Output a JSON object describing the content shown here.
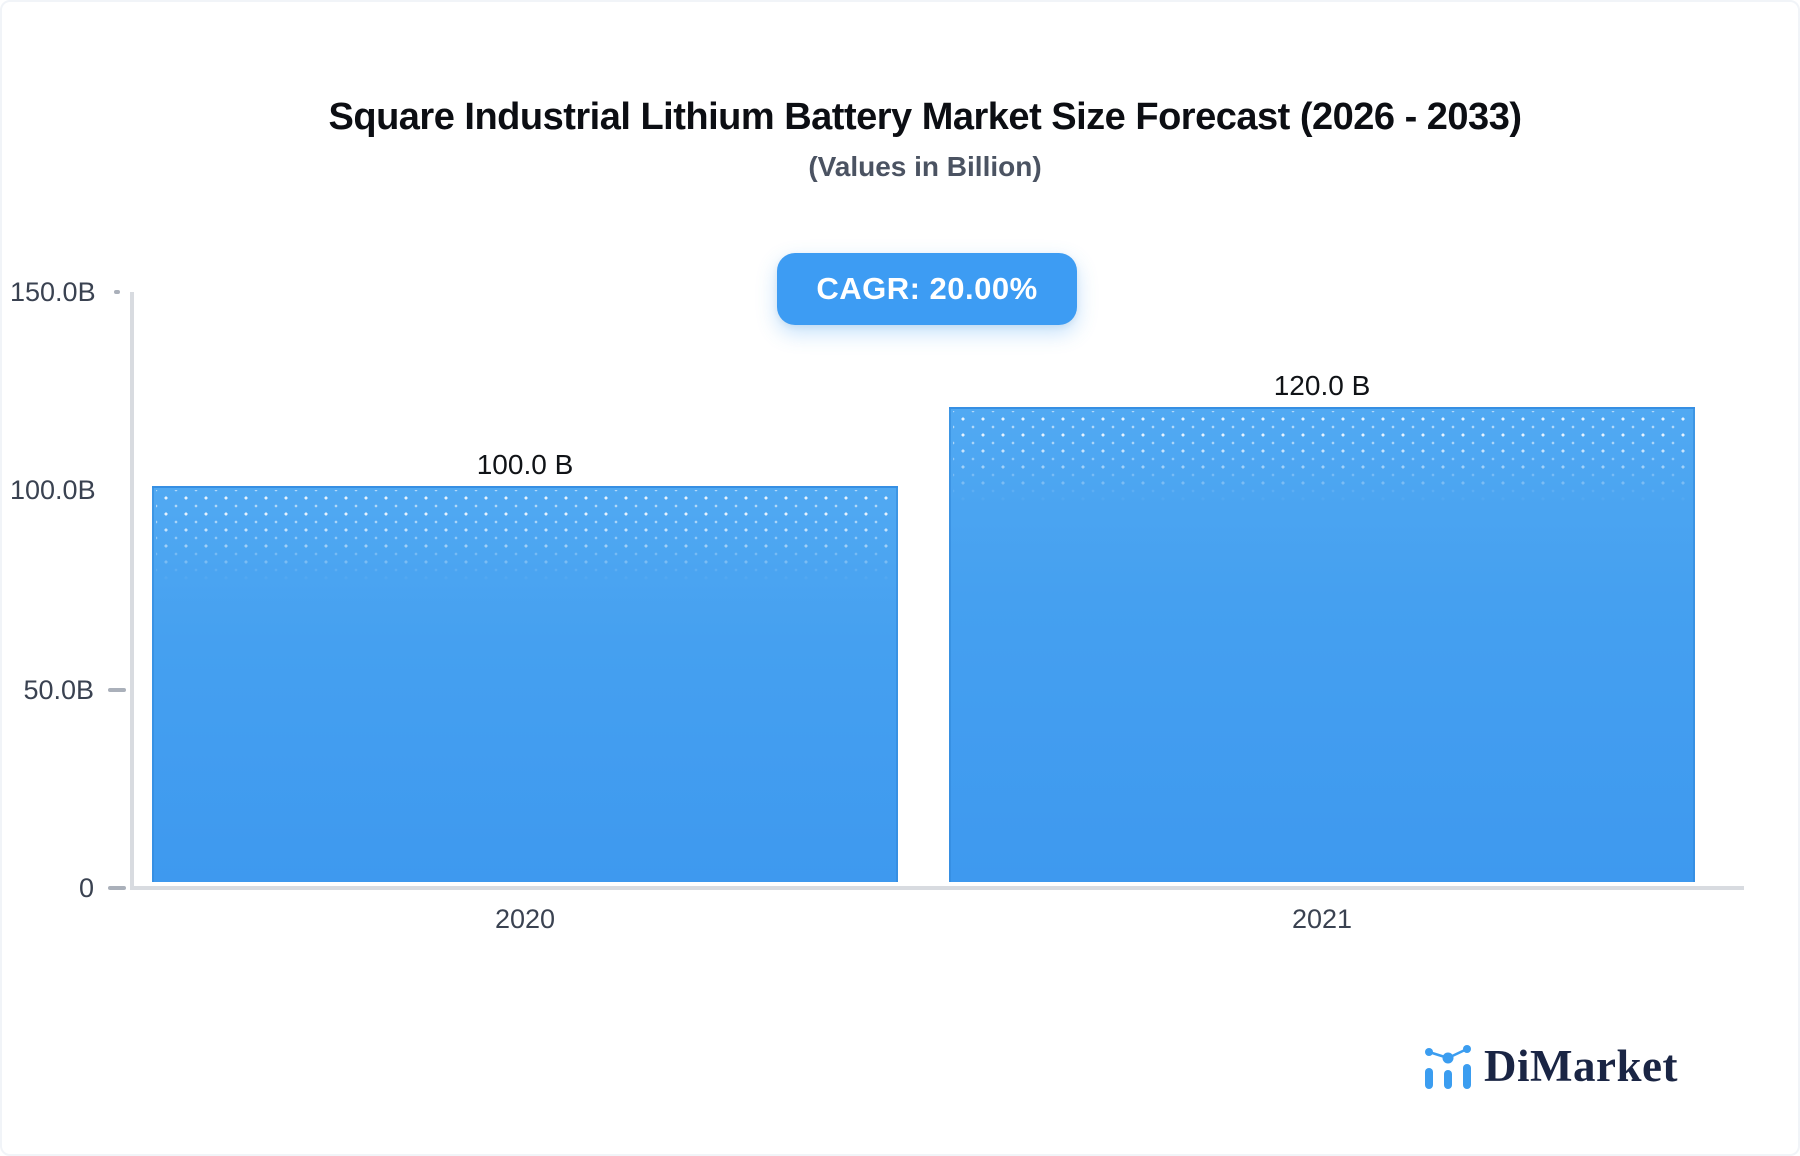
{
  "header": {
    "title": "Square Industrial Lithium Battery Market Size Forecast (2026 - 2033)",
    "subtitle": "(Values in Billion)",
    "cagr_badge": "CAGR: 20.00%"
  },
  "chart_data": {
    "type": "bar",
    "title": "Square Industrial Lithium Battery Market Size Forecast (2026 - 2033)",
    "subtitle": "(Values in Billion)",
    "unit": "Billion",
    "cagr_percent": "20.00%",
    "categories": [
      "2020",
      "2021"
    ],
    "values": [
      100,
      120
    ],
    "value_labels": [
      "100.0 B",
      "120.0 B"
    ],
    "xlabel": "",
    "ylabel": "",
    "ylim": [
      0,
      150
    ],
    "y_axis": {
      "ticks": [
        "150.0B",
        "100.0B",
        "50.0B",
        "0"
      ],
      "tick_values": [
        150,
        100,
        50,
        0
      ]
    },
    "grid": false,
    "legend": false,
    "bar_color": "#3F9BEF"
  },
  "branding": {
    "logo_text": "DiMarket",
    "logo_icon": "bar-chart-trend-icon"
  },
  "colors": {
    "accent_blue": "#3D9CF3",
    "bar_fill_top": "#51A9F2",
    "bar_fill_bottom": "#3E99EF",
    "bar_border": "#2F87D8",
    "axis_line": "#D8DBE0",
    "axis_text": "#3A4251",
    "title_text": "#0C0E13",
    "subtitle_text": "#4B5362",
    "value_text": "#101317",
    "logo_blue": "#3B9DF0",
    "logo_navy": "#1A2544",
    "card_border": "#F1F4F8"
  }
}
